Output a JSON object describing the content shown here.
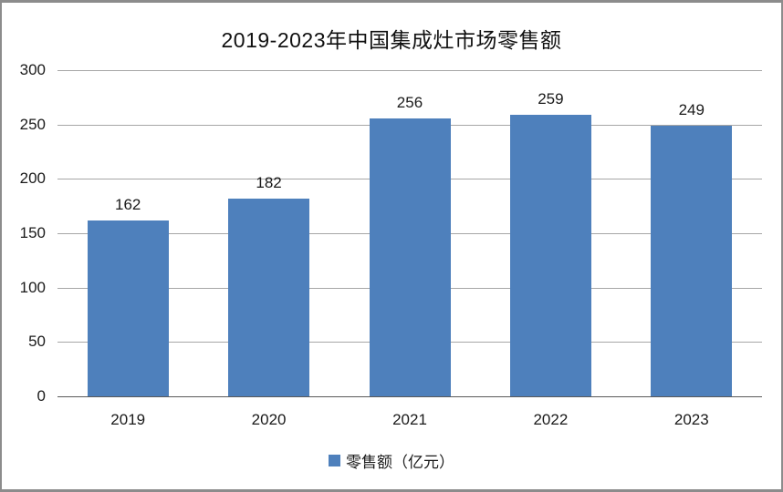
{
  "title": "2019-2023年中国集成灶市场零售额",
  "legend": {
    "label": "零售额（亿元）",
    "marker_color": "#4e80bc"
  },
  "chart_data": {
    "type": "bar",
    "title": "2019-2023年中国集成灶市场零售额",
    "categories": [
      "2019",
      "2020",
      "2021",
      "2022",
      "2023"
    ],
    "series": [
      {
        "name": "零售额（亿元）",
        "values": [
          162,
          182,
          256,
          259,
          249
        ]
      }
    ],
    "xlabel": "",
    "ylabel": "",
    "ylim": [
      0,
      300
    ],
    "yticks": [
      0,
      50,
      100,
      150,
      200,
      250,
      300
    ],
    "grid": true,
    "legend_position": "bottom",
    "data_labels": true,
    "bar_color": "#4e80bc",
    "gridline_color": "#a6a6a6",
    "axis_color": "#595959",
    "frame_border_color": "#8c8c8c",
    "background_color": "#ffffff"
  }
}
